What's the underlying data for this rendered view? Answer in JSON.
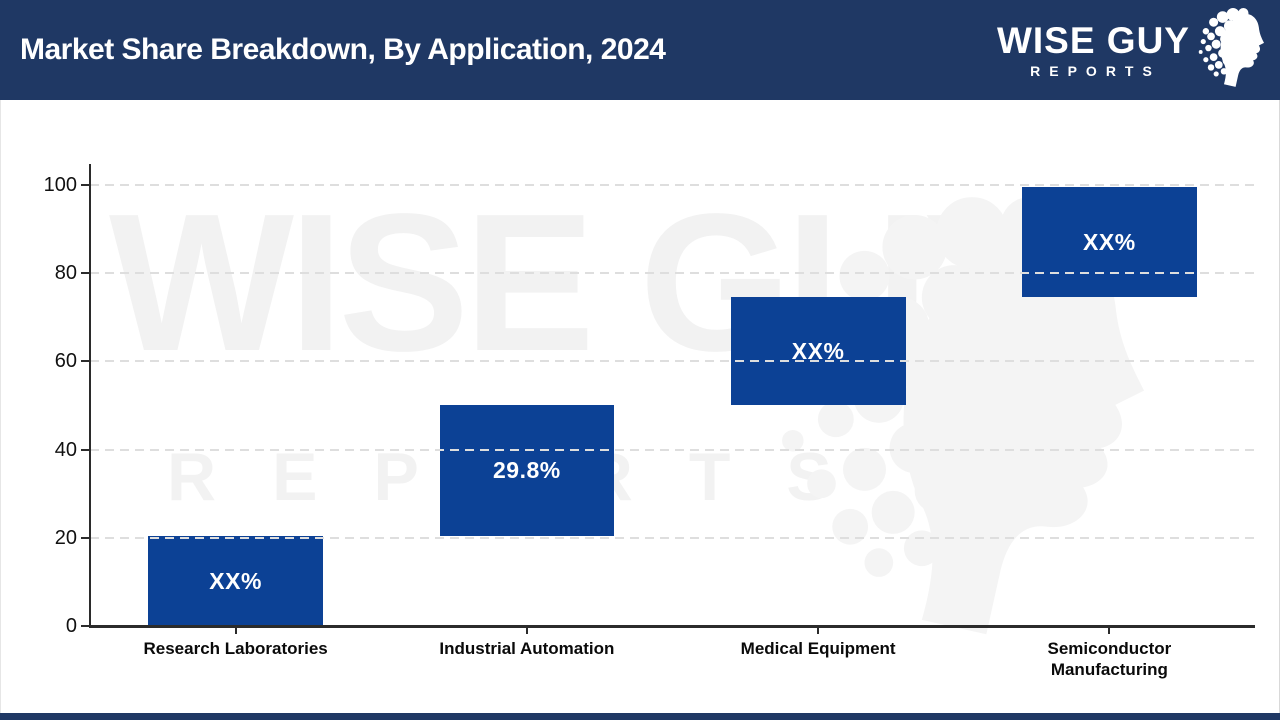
{
  "header": {
    "title": "Market Share Breakdown, By Application, 2024",
    "brand": {
      "name": "WISE GUY",
      "tagline": "REPORTS"
    }
  },
  "watermark": {
    "wordmark": "WISE GUY",
    "tagline": "REPORTS"
  },
  "colors": {
    "header_bg": "#1f3864",
    "footer_bg": "#1f3864",
    "bar_fill": "#0c4195",
    "bar_label_text": "#ffffff",
    "gridline": "#dedede",
    "axis": "#2b2b2b",
    "tick_text": "#111111",
    "watermark": "#f2f2f2"
  },
  "chart_data": {
    "type": "bar",
    "subtype": "floating-waterfall",
    "title": "Market Share Breakdown, By Application, 2024",
    "categories": [
      "Research Laboratories",
      "Industrial Automation",
      "Medical Equipment",
      "Semiconductor Manufacturing"
    ],
    "series": [
      {
        "name": "Market share (%)",
        "starts": [
          0,
          20.4,
          50.2,
          74.5
        ],
        "ends": [
          20.4,
          50.2,
          74.5,
          99.5
        ],
        "values": [
          20.4,
          29.8,
          24.3,
          25.0
        ]
      }
    ],
    "bar_labels": [
      "XX%",
      "29.8%",
      "XX%",
      "XX%"
    ],
    "xlabel": "",
    "ylabel": "",
    "ylim": [
      0,
      100
    ],
    "yticks": [
      0,
      20,
      40,
      60,
      80,
      100
    ],
    "grid": {
      "horizontal": true,
      "style": "dashed",
      "above_bars": true
    },
    "legend": "none"
  }
}
